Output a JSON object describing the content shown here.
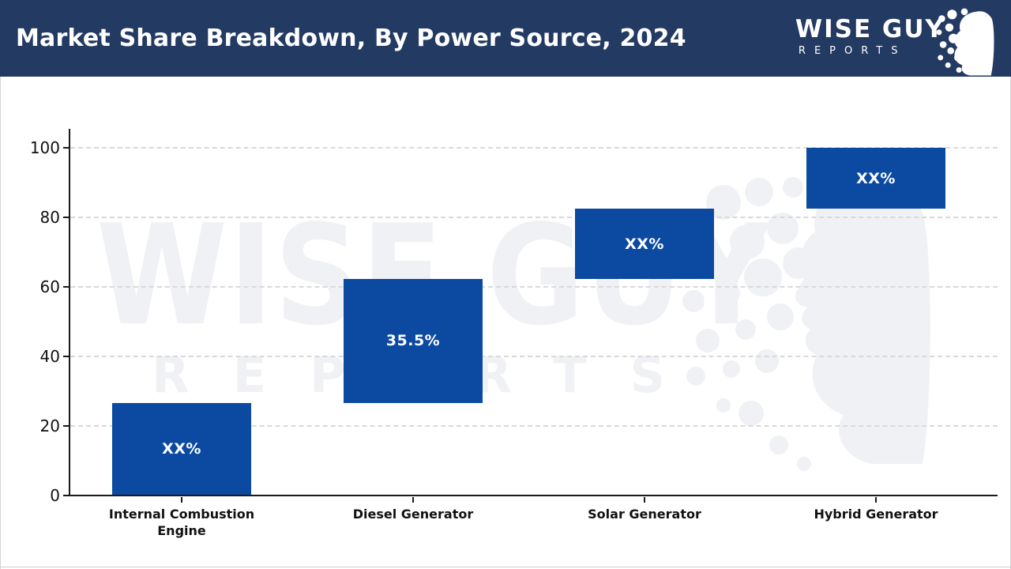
{
  "header": {
    "title": "Market Share Breakdown, By Power Source, 2024",
    "logo_line1": "WISE GUY",
    "logo_line2": "REPORTS"
  },
  "watermark": {
    "line1": "WISE GUY",
    "line2": "REPORTS"
  },
  "colors": {
    "header_bg": "#233a63",
    "bar": "#0c4aa2",
    "grid": "#d9d9d9",
    "axis": "#1a1a1a",
    "watermark": "#f0f1f4",
    "title_text": "#ffffff",
    "bar_label_text": "#ffffff"
  },
  "chart_data": {
    "type": "bar",
    "variant": "waterfall-floating-bars",
    "title": "Market Share Breakdown, By Power Source, 2024",
    "categories": [
      "Internal Combustion Engine",
      "Diesel Generator",
      "Solar Generator",
      "Hybrid Generator"
    ],
    "segments": [
      {
        "category": "Internal Combustion Engine",
        "start": 0,
        "end": 26.7,
        "label": "XX%"
      },
      {
        "category": "Diesel Generator",
        "start": 26.7,
        "end": 62.2,
        "label": "35.5%"
      },
      {
        "category": "Solar Generator",
        "start": 62.2,
        "end": 82.5,
        "label": "XX%"
      },
      {
        "category": "Hybrid Generator",
        "start": 82.5,
        "end": 100,
        "label": "XX%"
      }
    ],
    "yticks": [
      0,
      20,
      40,
      60,
      80,
      100
    ],
    "ylim": [
      0,
      105
    ],
    "xlabel": "",
    "ylabel": "",
    "grid": "horizontal-dashed",
    "legend": "none",
    "bar_value_note": "XX% are masked sample values; Diesel Generator bar height equals 35.5"
  }
}
